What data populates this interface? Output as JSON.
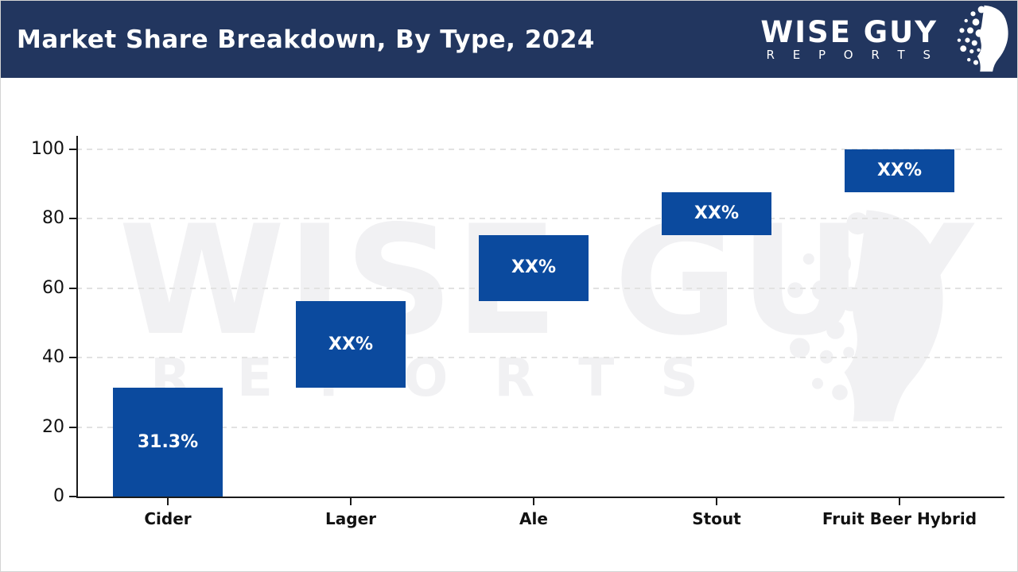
{
  "header": {
    "title": "Market Share Breakdown, By Type, 2024",
    "logo_main": "WISE GUY",
    "logo_sub": "REPORTS",
    "bg_color": "#22365f"
  },
  "watermark": {
    "line1": "WISE GUY",
    "line2": "REPORTS",
    "face_icon": "dotted-head-profile"
  },
  "chart_data": {
    "type": "bar",
    "subtype": "waterfall",
    "title": "Market Share Breakdown, By Type, 2024",
    "categories": [
      "Cider",
      "Lager",
      "Ale",
      "Stout",
      "Fruit Beer Hybrid"
    ],
    "series": [
      {
        "name": "Market Share",
        "segments": [
          {
            "category": "Cider",
            "start": 0,
            "end": 31.3,
            "label": "31.3%"
          },
          {
            "category": "Lager",
            "start": 31.3,
            "end": 56.3,
            "label": "XX%"
          },
          {
            "category": "Ale",
            "start": 56.3,
            "end": 75.3,
            "label": "XX%"
          },
          {
            "category": "Stout",
            "start": 75.3,
            "end": 87.7,
            "label": "XX%"
          },
          {
            "category": "Fruit Beer Hybrid",
            "start": 87.7,
            "end": 100,
            "label": "XX%"
          }
        ]
      }
    ],
    "xlabel": "",
    "ylabel": "",
    "ylim": [
      0,
      104
    ],
    "y_ticks": [
      0,
      20,
      40,
      60,
      80,
      100
    ],
    "grid": "horizontal-dashed",
    "legend": null,
    "bar_color": "#0b4a9e",
    "bar_label_color": "#ffffff",
    "axis_color": "#1a1a1a",
    "grid_color": "#e2e2e2"
  }
}
